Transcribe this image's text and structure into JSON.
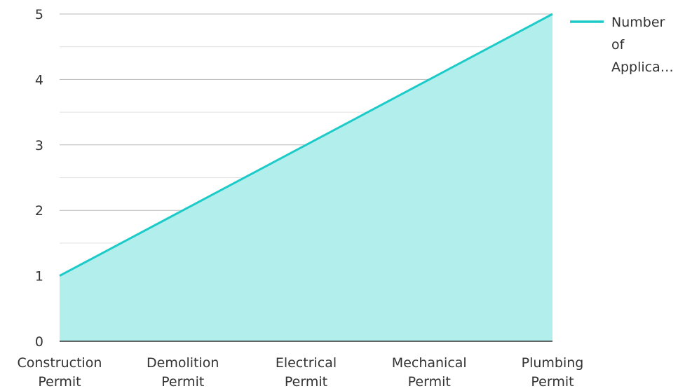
{
  "chart_data": {
    "type": "area",
    "categories": [
      "Construction Permit",
      "Demolition Permit",
      "Electrical Permit",
      "Mechanical Permit",
      "Plumbing Permit"
    ],
    "series": [
      {
        "name": "Number of Applica…",
        "values": [
          1,
          2,
          3,
          4,
          5
        ]
      }
    ],
    "title": "",
    "xlabel": "",
    "ylabel": "",
    "ylim": [
      0,
      5
    ],
    "yticks": [
      0,
      1,
      2,
      3,
      4,
      5
    ],
    "grid": true,
    "legend_position": "right",
    "legend_lines": [
      "Number",
      "of",
      "Applica…"
    ],
    "colors": {
      "line": "#1ccbc8",
      "fill": "#b2eeec",
      "grid_major": "#b8b8b8",
      "grid_minor": "#e2e2e2",
      "axis": "#333333"
    }
  }
}
